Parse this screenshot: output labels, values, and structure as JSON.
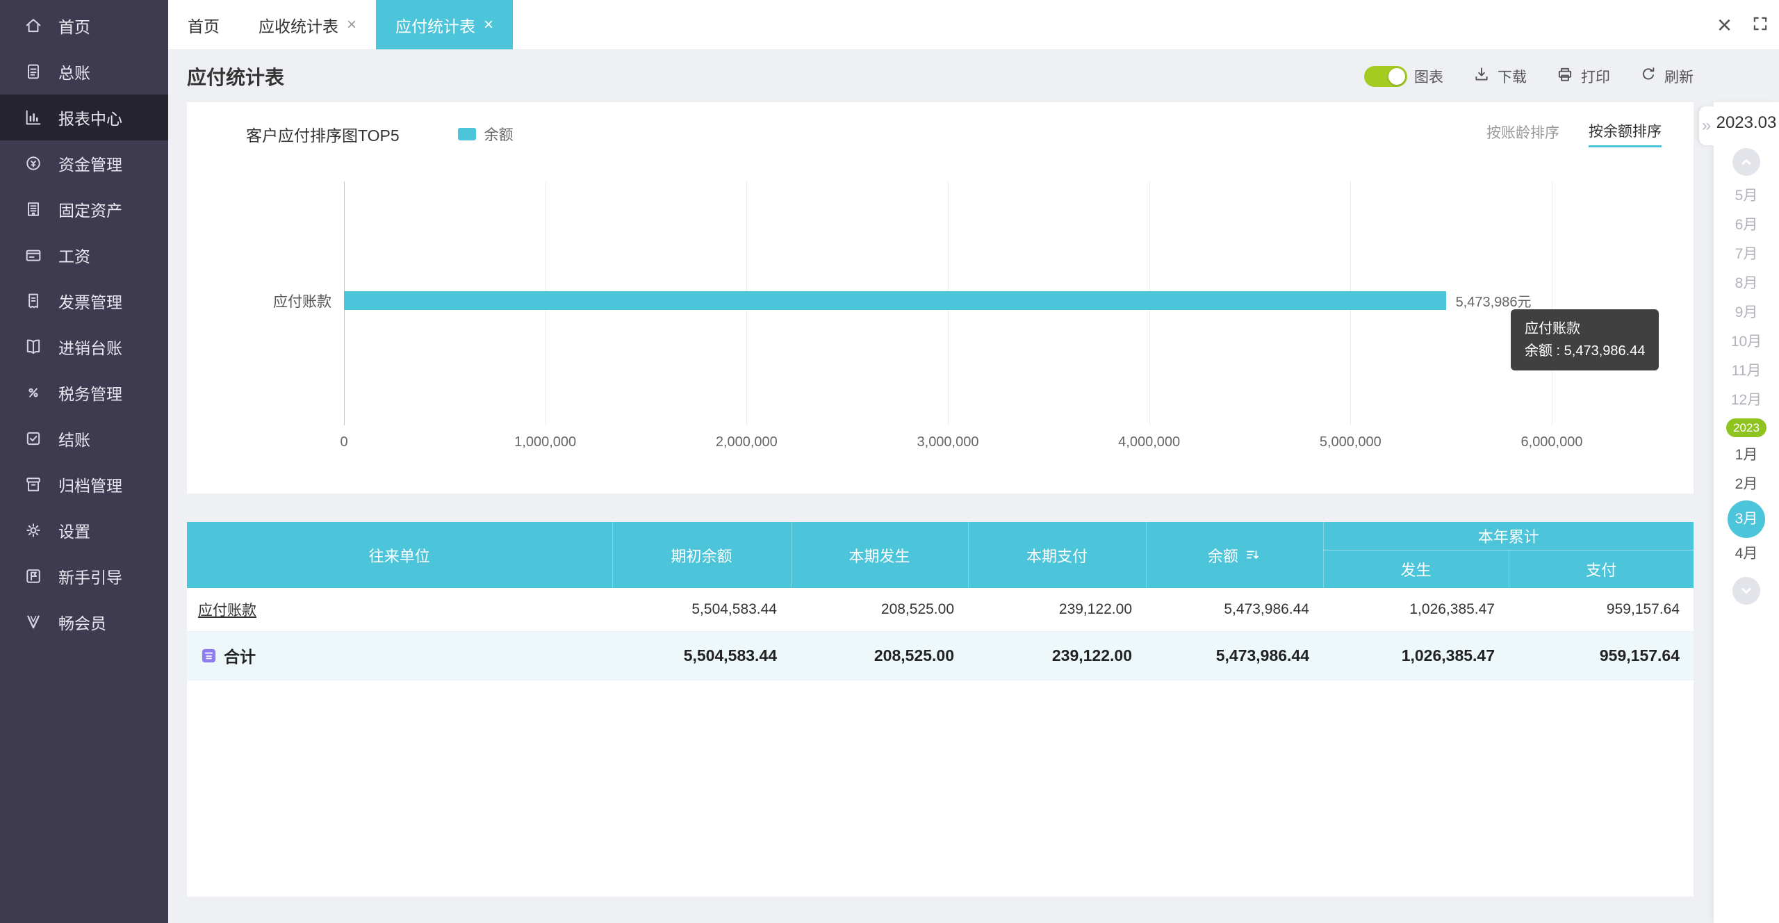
{
  "app": {
    "accent_color": "#4cc4d9",
    "sidebar_color": "#3e3b50",
    "toggle_color": "#a4cc20"
  },
  "sidebar": {
    "items": [
      {
        "label": "首页"
      },
      {
        "label": "总账"
      },
      {
        "label": "报表中心"
      },
      {
        "label": "资金管理"
      },
      {
        "label": "固定资产"
      },
      {
        "label": "工资"
      },
      {
        "label": "发票管理"
      },
      {
        "label": "进销台账"
      },
      {
        "label": "税务管理"
      },
      {
        "label": "结账"
      },
      {
        "label": "归档管理"
      },
      {
        "label": "设置"
      },
      {
        "label": "新手引导"
      },
      {
        "label": "畅会员"
      }
    ]
  },
  "tabs": {
    "items": [
      {
        "label": "首页"
      },
      {
        "label": "应收统计表"
      },
      {
        "label": "应付统计表"
      }
    ],
    "close_glyph": "×"
  },
  "window": {
    "close_glyph": "×"
  },
  "page": {
    "title": "应付统计表"
  },
  "toolbar": {
    "chart_toggle": "图表",
    "download": "下载",
    "print": "打印",
    "refresh": "刷新"
  },
  "chart_card": {
    "title": "客户应付排序图TOP5",
    "legend": "余额",
    "sort_by_age": "按账龄排序",
    "sort_by_balance": "按余额排序",
    "category": "应付账款",
    "bar_value_label": "5,473,986元",
    "tooltip_title": "应付账款",
    "tooltip_text": "余额 : 5,473,986.44"
  },
  "chart_data": {
    "type": "bar",
    "orientation": "horizontal",
    "title": "客户应付排序图TOP5",
    "legend": [
      "余额"
    ],
    "categories": [
      "应付账款"
    ],
    "values": [
      5473986.44
    ],
    "data_labels": [
      "5,473,986元"
    ],
    "xlim": [
      0,
      6000000
    ],
    "x_ticks": [
      "0",
      "1,000,000",
      "2,000,000",
      "3,000,000",
      "4,000,000",
      "5,000,000",
      "6,000,000"
    ],
    "bar_color": "#4cc4d9",
    "grid": true,
    "tooltip": {
      "title": "应付账款",
      "text": "余额 : 5,473,986.44"
    }
  },
  "table": {
    "h_unit": "往来单位",
    "h_begin": "期初余额",
    "h_incur": "本期发生",
    "h_pay": "本期支付",
    "h_balance": "余额",
    "h_year_total": "本年累计",
    "h_year_incur": "发生",
    "h_year_pay": "支付",
    "rows": [
      {
        "name": "应付账款",
        "begin": "5,504,583.44",
        "incur": "208,525.00",
        "pay": "239,122.00",
        "balance": "5,473,986.44",
        "year_incur": "1,026,385.47",
        "year_pay": "959,157.64"
      }
    ],
    "total": {
      "label": "合计",
      "begin": "5,504,583.44",
      "incur": "208,525.00",
      "pay": "239,122.00",
      "balance": "5,473,986.44",
      "year_incur": "1,026,385.47",
      "year_pay": "959,157.64"
    }
  },
  "period": {
    "current": "2023.03",
    "handle_glyph": "»",
    "months_prev": [
      "5月",
      "6月",
      "7月",
      "8月",
      "9月",
      "10月",
      "11月",
      "12月"
    ],
    "year_badge": "2023",
    "months_next": [
      "1月",
      "2月",
      "3月",
      "4月"
    ],
    "active_month": "3月"
  }
}
